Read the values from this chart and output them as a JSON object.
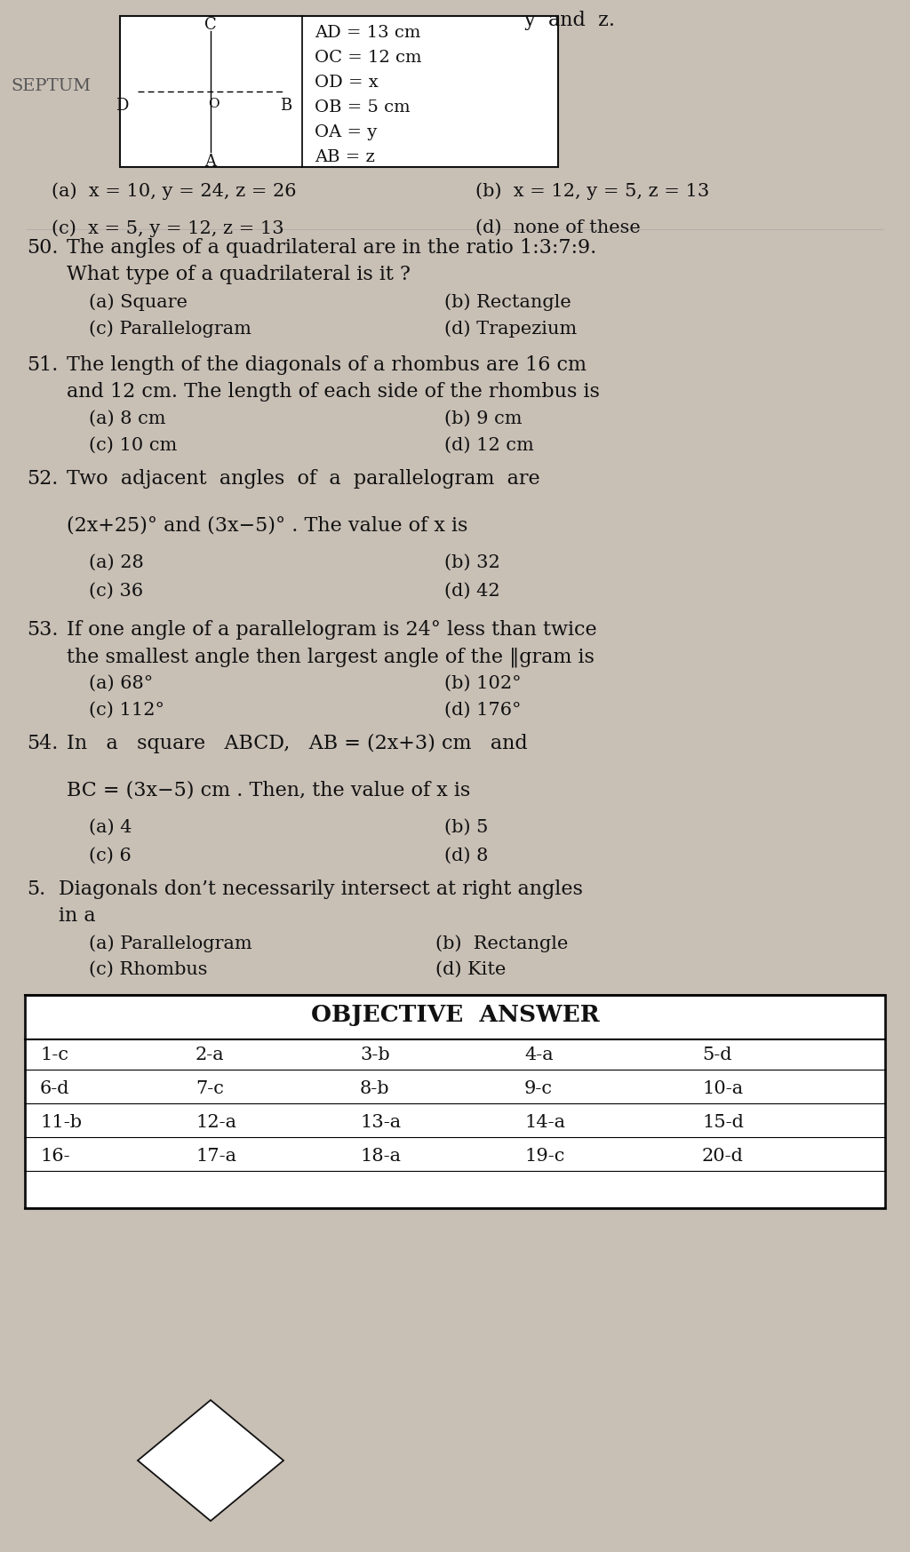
{
  "bg_color": "#c8bfb5",
  "text_color": "#1a1a1a",
  "title_partial": "y  and  z.",
  "watermark": "SEPTUM",
  "diag_lines": [
    "AD = 13 cm",
    "OC = 12 cm",
    "OD = x",
    "OB = 5 cm",
    "OA = y",
    "AB = z"
  ],
  "q49a": "(a)  x = 10, y = 24, z = 26",
  "q49b": "(b)  x = 12, y = 5, z = 13",
  "q49c": "(c)  x = 5, y = 12, z = 13",
  "q49d": "(d)  none of these",
  "q50_num": "50.",
  "q50_l1": "The angles of a quadrilateral are in the ratio 1:3:7:9.",
  "q50_l2": "What type of a quadrilateral is it ?",
  "q50_oa": "(a) Square",
  "q50_ob": "(b) Rectangle",
  "q50_oc": "(c) Parallelogram",
  "q50_od": "(d) Trapezium",
  "q51_num": "51.",
  "q51_l1": "The length of the diagonals of a rhombus are 16 cm",
  "q51_l2": "and 12 cm. The length of each side of the rhombus is",
  "q51_oa": "(a) 8 cm",
  "q51_ob": "(b) 9 cm",
  "q51_oc": "(c) 10 cm",
  "q51_od": "(d) 12 cm",
  "q52_num": "52.",
  "q52_l1": "Two  adjacent  angles  of  a  parallelogram  are",
  "q52_l2": "(2x+25)° and (3x−5)° . The value of x is",
  "q52_oa": "(a) 28",
  "q52_ob": "(b) 32",
  "q52_oc": "(c) 36",
  "q52_od": "(d) 42",
  "q53_num": "53.",
  "q53_l1": "If one angle of a parallelogram is 24° less than twice",
  "q53_l2": "the smallest angle then largest angle of the ‖gram is",
  "q53_oa": "(a) 68°",
  "q53_ob": "(b) 102°",
  "q53_oc": "(c) 112°",
  "q53_od": "(d) 176°",
  "q54_num": "54.",
  "q54_l1": "In   a   square   ABCD,   AB = (2x+3) cm   and",
  "q54_l2": "BC = (3x−5) cm . Then, the value of x is",
  "q54_oa": "(a) 4",
  "q54_ob": "(b) 5",
  "q54_oc": "(c) 6",
  "q54_od": "(d) 8",
  "q55_num": "5.",
  "q55_l1": "Diagonals don’t necessarily intersect at right angles",
  "q55_l2": "in a",
  "q55_oa": "(a) Parallelogram",
  "q55_ob": "(b)  Rectangle",
  "q55_oc": "(c) Rhombus",
  "q55_od": "(d) Kite",
  "obj_header": "OBJECTIVE  ANSWER",
  "obj_rows": [
    [
      "1-c",
      "2-a",
      "3-b",
      "4-a",
      "5-d"
    ],
    [
      "6-d",
      "7-c",
      "8-b",
      "9-c",
      "10-a"
    ],
    [
      "11-b",
      "12-a",
      "13-a",
      "14-a",
      "15-d"
    ],
    [
      "16-",
      "17-a",
      "18-a",
      "19-c",
      "20-d"
    ]
  ]
}
